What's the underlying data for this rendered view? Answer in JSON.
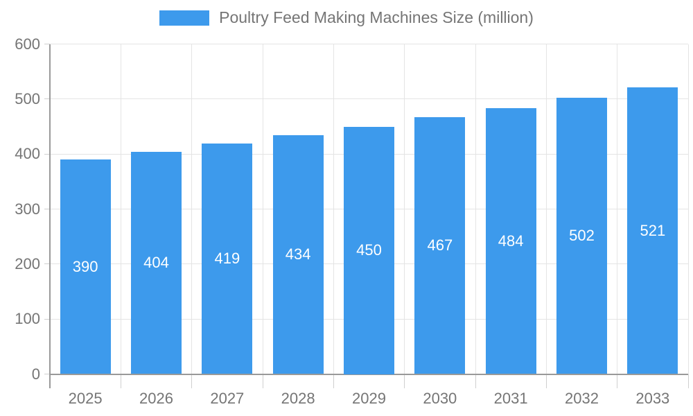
{
  "legend": {
    "label": "Poultry Feed Making Machines Size (million)"
  },
  "colors": {
    "bar": "#3D9AEC",
    "axis_line": "#999999",
    "grid_line": "#E4E4E4",
    "tick_line": "#CFCFCF",
    "axis_text": "#757575",
    "bar_label_text": "#FFFFFF",
    "background": "#FFFFFF"
  },
  "chart_data": {
    "type": "bar",
    "title": "Poultry Feed Making Machines Size (million)",
    "categories": [
      "2025",
      "2026",
      "2027",
      "2028",
      "2029",
      "2030",
      "2031",
      "2032",
      "2033"
    ],
    "values": [
      390,
      404,
      419,
      434,
      450,
      467,
      484,
      502,
      521
    ],
    "series": [
      {
        "name": "Poultry Feed Making Machines Size (million)",
        "values": [
          390,
          404,
          419,
          434,
          450,
          467,
          484,
          502,
          521
        ]
      }
    ],
    "xlabel": "",
    "ylabel": "",
    "ylim": [
      0,
      600
    ],
    "yticks": [
      0,
      100,
      200,
      300,
      400,
      500,
      600
    ],
    "grid": true,
    "legend_position": "top",
    "bar_label_position": "inside-center"
  }
}
